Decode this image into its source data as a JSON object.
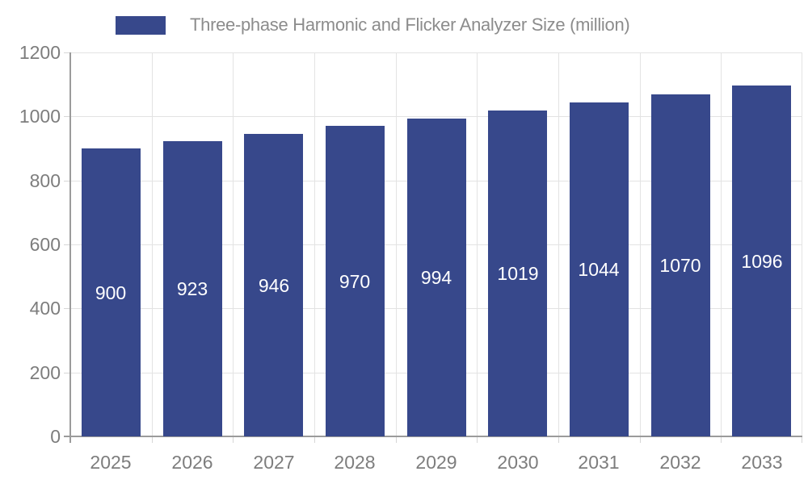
{
  "legend": {
    "label": "Three-phase Harmonic and Flicker Analyzer Size (million)"
  },
  "chart_data": {
    "type": "bar",
    "title": "Three-phase Harmonic and Flicker Analyzer Size (million)",
    "categories": [
      "2025",
      "2026",
      "2027",
      "2028",
      "2029",
      "2030",
      "2031",
      "2032",
      "2033"
    ],
    "values": [
      900,
      923,
      946,
      970,
      994,
      1019,
      1044,
      1070,
      1096
    ],
    "xlabel": "",
    "ylabel": "",
    "ylim": [
      0,
      1200
    ],
    "ytick_step": 200,
    "yticks": [
      0,
      200,
      400,
      600,
      800,
      1000,
      1200
    ],
    "grid": true,
    "legend_position": "top",
    "value_labels": "inside-center",
    "colors": {
      "bar": "#37488B",
      "value_label": "#ffffff",
      "gridline": "#e3e3e3",
      "axis_line": "#9b9b9b",
      "tick_mark": "#d6d6d6",
      "tick_label": "#7d7d7d",
      "legend_text": "#8c8c8c"
    }
  }
}
